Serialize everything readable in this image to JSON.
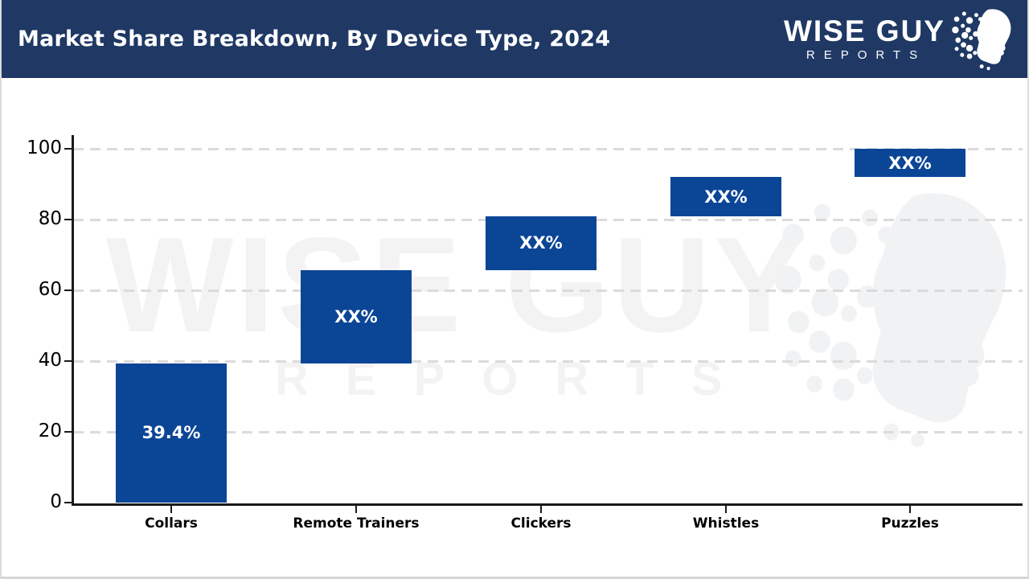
{
  "header": {
    "title": "Market Share Breakdown, By Device Type, 2024",
    "logo": {
      "line1": "WISE GUY",
      "line2": "REPORTS"
    }
  },
  "watermark": {
    "line1": "WISE GUY",
    "line2": "REPORTS"
  },
  "chart_data": {
    "type": "bar",
    "subtype": "waterfall",
    "title": "Market Share Breakdown, By Device Type, 2024",
    "categories": [
      "Collars",
      "Remote Trainers",
      "Clickers",
      "Whistles",
      "Puzzles"
    ],
    "segments": [
      {
        "category": "Collars",
        "start": 0,
        "end": 39.4,
        "label": "39.4%"
      },
      {
        "category": "Remote Trainers",
        "start": 39.4,
        "end": 65.7,
        "label": "XX%"
      },
      {
        "category": "Clickers",
        "start": 65.7,
        "end": 80.9,
        "label": "XX%"
      },
      {
        "category": "Whistles",
        "start": 80.9,
        "end": 92.0,
        "label": "XX%"
      },
      {
        "category": "Puzzles",
        "start": 92.0,
        "end": 100.0,
        "label": "XX%"
      }
    ],
    "xlabel": "",
    "ylabel": "",
    "ylim": [
      0,
      100
    ],
    "yticks": [
      0,
      20,
      40,
      60,
      80,
      100
    ],
    "grid": "horizontal-dashed",
    "legend": "none",
    "colors": {
      "bar": "#0b4596",
      "bar_label": "#ffffff",
      "header_bg": "#1f3864",
      "gridline": "#dbdbdb",
      "axis": "#1a1a1a"
    }
  }
}
